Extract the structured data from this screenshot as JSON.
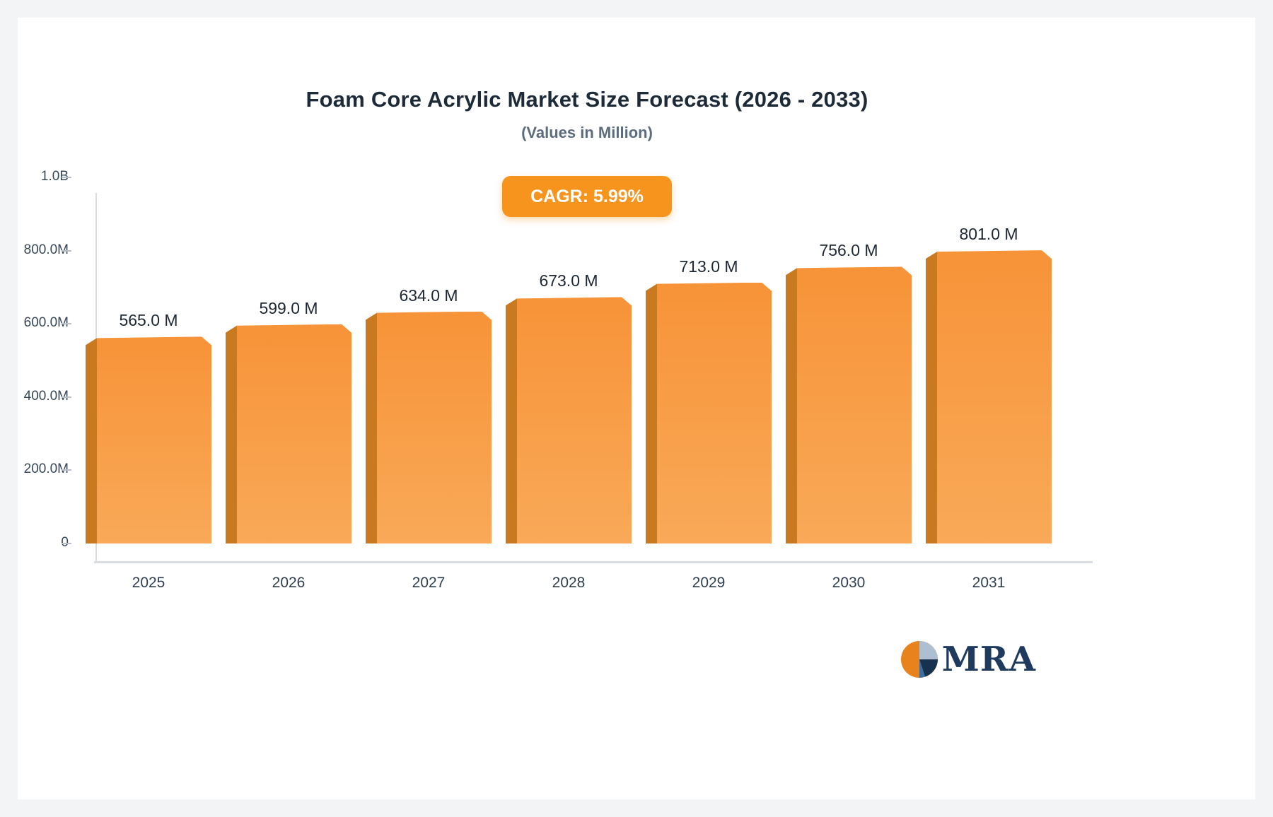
{
  "title": "Foam Core Acrylic Market Size Forecast (2026 - 2033)",
  "subtitle": "(Values in Million)",
  "badge_label": "CAGR: 5.99%",
  "logo_text": "MRA",
  "colors": {
    "bar_fill_top": "#f79338",
    "bar_fill_bottom": "#f9a958",
    "bar_side": "#c9791f",
    "badge": "#f7941e",
    "axis": "#d9dde2",
    "title_text": "#1d2a38",
    "subtitle_text": "#5c6b7e",
    "logo_navy": "#1f3a5f"
  },
  "chart_data": {
    "type": "bar",
    "title": "Foam Core Acrylic Market Size Forecast (2026 - 2033)",
    "subtitle": "(Values in Million)",
    "annotation": "CAGR: 5.99%",
    "categories": [
      "2025",
      "2026",
      "2027",
      "2028",
      "2029",
      "2030",
      "2031"
    ],
    "values": [
      565,
      599,
      634,
      673,
      713,
      756,
      801
    ],
    "value_labels": [
      "565.0 M",
      "599.0 M",
      "634.0 M",
      "673.0 M",
      "713.0 M",
      "756.0 M",
      "801.0 M"
    ],
    "xlabel": "",
    "ylabel": "",
    "ylim": [
      0,
      1000
    ],
    "y_ticks": [
      {
        "label": "1.0B",
        "value": 1000
      },
      {
        "label": "800.0M",
        "value": 800
      },
      {
        "label": "600.0M",
        "value": 600
      },
      {
        "label": "400.0M",
        "value": 400
      },
      {
        "label": "200.0M",
        "value": 200
      },
      {
        "label": "0",
        "value": 0
      }
    ],
    "grid": false,
    "legend": false,
    "bar_color": "#f79338"
  }
}
